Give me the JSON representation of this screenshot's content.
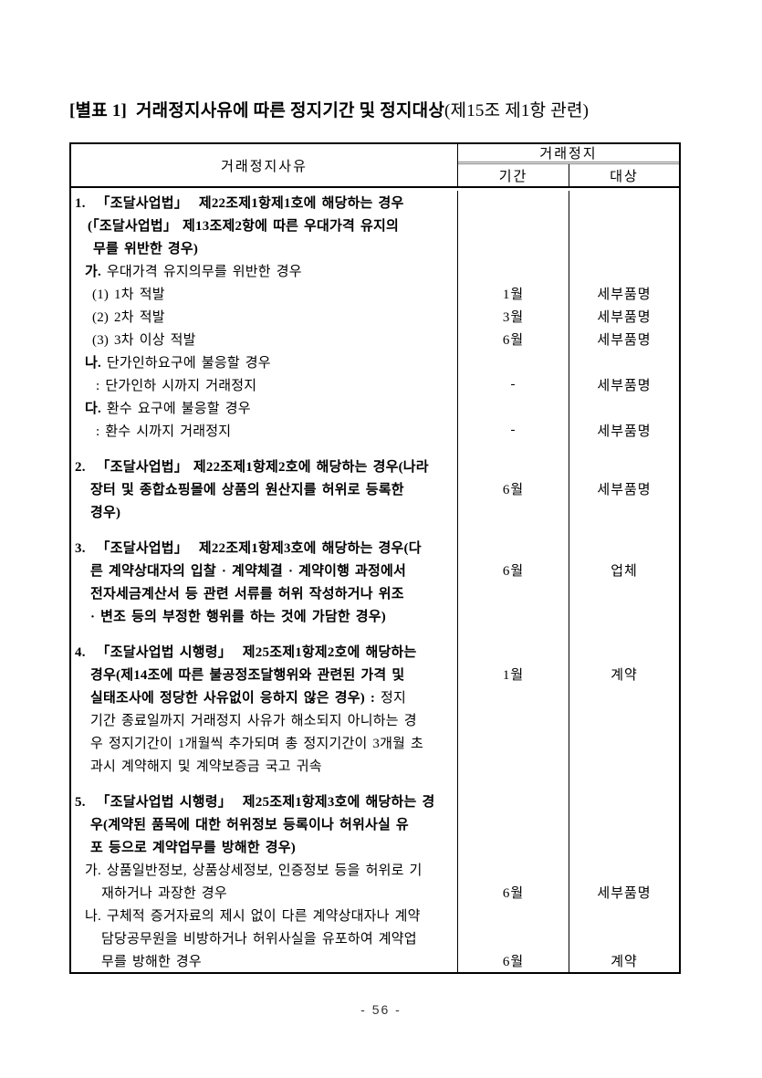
{
  "title": {
    "prefix": "[별표 1]  ",
    "main": "거래정지사유에 따른 정지기간 및 정지대상",
    "suffix": "(제15조 제1항 관련)"
  },
  "footer": {
    "page_number": "- 56 -"
  },
  "colors": {
    "text": "#000000",
    "table_border": "#000000",
    "header_double_rule": "#808080",
    "background": "#ffffff"
  },
  "table": {
    "header": {
      "reason_label": "거래정지사유",
      "group_label": "거래정지",
      "period_label": "기간",
      "target_label": "대상"
    },
    "rows": [
      {
        "indent": 4,
        "parts": [
          {
            "text": "1.  「조달사업법」  제22조제1항제1호에 해당하는 경우",
            "bold": true
          }
        ],
        "period": "",
        "target": ""
      },
      {
        "indent": 18,
        "parts": [
          {
            "text": "(「조달사업법」 제13조제2항에 따른 우대가격 유지의",
            "bold": true
          }
        ],
        "period": "",
        "target": ""
      },
      {
        "indent": 24,
        "parts": [
          {
            "text": "무를 위반한 경우)",
            "bold": true
          }
        ],
        "period": "",
        "target": ""
      },
      {
        "indent": 15,
        "parts": [
          {
            "text": "가. ",
            "bold": true
          },
          {
            "text": "우대가격 유지의무를 위반한 경우",
            "bold": false
          }
        ],
        "period": "",
        "target": ""
      },
      {
        "indent": 23,
        "parts": [
          {
            "text": "(1) 1차 적발",
            "bold": false
          }
        ],
        "period": "1월",
        "target": "세부품명"
      },
      {
        "indent": 23,
        "parts": [
          {
            "text": "(2) 2차 적발",
            "bold": false
          }
        ],
        "period": "3월",
        "target": "세부품명"
      },
      {
        "indent": 23,
        "parts": [
          {
            "text": "(3) 3차 이상 적발",
            "bold": false
          }
        ],
        "period": "6월",
        "target": "세부품명"
      },
      {
        "indent": 15,
        "parts": [
          {
            "text": "나. ",
            "bold": true
          },
          {
            "text": "단가인하요구에 불응할 경우",
            "bold": false
          }
        ],
        "period": "",
        "target": ""
      },
      {
        "indent": 27,
        "parts": [
          {
            "text": ": 단가인하 시까지 거래정지",
            "bold": false
          }
        ],
        "period": "-",
        "target": "세부품명"
      },
      {
        "indent": 15,
        "parts": [
          {
            "text": "다. ",
            "bold": true
          },
          {
            "text": "환수 요구에 불응할 경우",
            "bold": false
          }
        ],
        "period": "",
        "target": ""
      },
      {
        "indent": 27,
        "parts": [
          {
            "text": ": 환수 시까지 거래정지",
            "bold": false
          }
        ],
        "period": "-",
        "target": "세부품명"
      },
      {
        "spacer": true
      },
      {
        "indent": 4,
        "parts": [
          {
            "text": "2.  「조달사업법」 제22조제1항제2호에 해당하는 경우(나라",
            "bold": true
          }
        ],
        "period": "",
        "target": ""
      },
      {
        "indent": 21,
        "parts": [
          {
            "text": "장터 및 종합쇼핑몰에 상품의 원산지를 허위로 등록한",
            "bold": true
          }
        ],
        "period": "6월",
        "target": "세부품명"
      },
      {
        "indent": 21,
        "parts": [
          {
            "text": "경우)",
            "bold": true
          }
        ],
        "period": "",
        "target": ""
      },
      {
        "spacer": true
      },
      {
        "indent": 4,
        "parts": [
          {
            "text": "3.  「조달사업법」  제22조제1항제3호에 해당하는 경우(다",
            "bold": true
          }
        ],
        "period": "",
        "target": ""
      },
      {
        "indent": 21,
        "parts": [
          {
            "text": "른 계약상대자의 입찰 · 계약체결 · 계약이행 과정에서",
            "bold": true
          }
        ],
        "period": "6월",
        "target": "업체"
      },
      {
        "indent": 21,
        "parts": [
          {
            "text": "전자세금계산서 등 관련 서류를 허위 작성하거나 위조",
            "bold": true
          }
        ],
        "period": "",
        "target": ""
      },
      {
        "indent": 21,
        "parts": [
          {
            "text": "· 변조 등의 부정한 행위를 하는 것에 가담한 경우)",
            "bold": true
          }
        ],
        "period": "",
        "target": ""
      },
      {
        "spacer": true
      },
      {
        "indent": 4,
        "parts": [
          {
            "text": "4.  「조달사업법 시행령」  제25조제1항제2호에 해당하는",
            "bold": true
          }
        ],
        "period": "",
        "target": ""
      },
      {
        "indent": 21,
        "parts": [
          {
            "text": "경우(제14조에 따른 불공정조달행위와 관련된 가격 및",
            "bold": true
          }
        ],
        "period": "1월",
        "target": "계약"
      },
      {
        "indent": 21,
        "parts": [
          {
            "text": "실태조사에 정당한 사유없이 응하지 않은 경우) : ",
            "bold": true
          },
          {
            "text": "정지",
            "bold": false
          }
        ],
        "period": "",
        "target": ""
      },
      {
        "indent": 21,
        "parts": [
          {
            "text": "기간 종료일까지 거래정지 사유가 해소되지 아니하는 경",
            "bold": false
          }
        ],
        "period": "",
        "target": ""
      },
      {
        "indent": 21,
        "parts": [
          {
            "text": "우 정지기간이 1개월씩 추가되며 총 정지기간이 3개월 초",
            "bold": false
          }
        ],
        "period": "",
        "target": ""
      },
      {
        "indent": 21,
        "parts": [
          {
            "text": "과시 계약해지 및 계약보증금 국고 귀속",
            "bold": false
          }
        ],
        "period": "",
        "target": ""
      },
      {
        "spacer": true
      },
      {
        "indent": 4,
        "parts": [
          {
            "text": "5.  「조달사업법 시행령」  제25조제1항제3호에 해당하는 경",
            "bold": true
          }
        ],
        "period": "",
        "target": ""
      },
      {
        "indent": 21,
        "parts": [
          {
            "text": "우(계약된 품목에 대한 허위정보 등록이나 허위사실 유",
            "bold": true
          }
        ],
        "period": "",
        "target": ""
      },
      {
        "indent": 21,
        "parts": [
          {
            "text": "포 등으로 계약업무를 방해한 경우)",
            "bold": true
          }
        ],
        "period": "",
        "target": ""
      },
      {
        "indent": 15,
        "parts": [
          {
            "text": "가. 상품일반정보, 상품상세정보, 인증정보 등을 허위로 기",
            "bold": false
          }
        ],
        "period": "",
        "target": ""
      },
      {
        "indent": 33,
        "parts": [
          {
            "text": "재하거나 과장한 경우",
            "bold": false
          }
        ],
        "period": "6월",
        "target": "세부품명"
      },
      {
        "indent": 15,
        "parts": [
          {
            "text": "나. 구체적 증거자료의 제시 없이 다른 계약상대자나 계약",
            "bold": false
          }
        ],
        "period": "",
        "target": ""
      },
      {
        "indent": 33,
        "parts": [
          {
            "text": "담당공무원을 비방하거나 허위사실을 유포하여 계약업",
            "bold": false
          }
        ],
        "period": "",
        "target": ""
      },
      {
        "indent": 33,
        "parts": [
          {
            "text": "무를 방해한 경우",
            "bold": false
          }
        ],
        "period": "6월",
        "target": "계약"
      }
    ]
  }
}
